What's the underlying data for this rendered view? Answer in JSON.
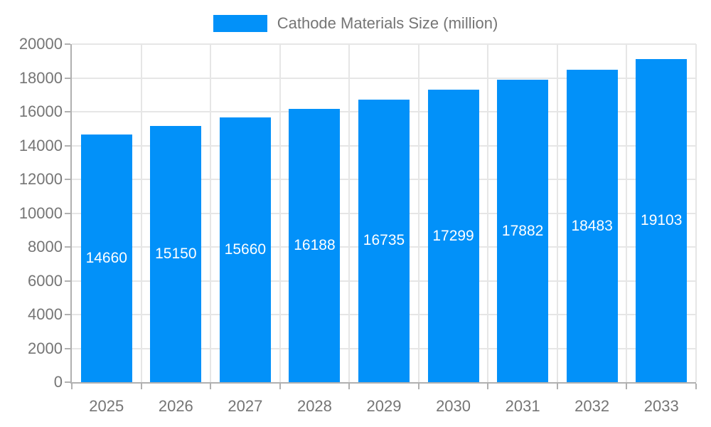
{
  "legend": {
    "label": "Cathode Materials Size (million)"
  },
  "chart_data": {
    "type": "bar",
    "title": "",
    "xlabel": "",
    "ylabel": "",
    "categories": [
      "2025",
      "2026",
      "2027",
      "2028",
      "2029",
      "2030",
      "2031",
      "2032",
      "2033"
    ],
    "values": [
      14660,
      15150,
      15660,
      16188,
      16735,
      17299,
      17882,
      18483,
      19103
    ],
    "series_name": "Cathode Materials Size (million)",
    "ylim": [
      0,
      20000
    ],
    "yticks": [
      0,
      2000,
      4000,
      6000,
      8000,
      10000,
      12000,
      14000,
      16000,
      18000,
      20000
    ],
    "grid": true,
    "legend_position": "top-center",
    "value_label_position": "inside-middle"
  },
  "colors": {
    "bar": "#0291f9",
    "grid": "#e6e6e6",
    "axis": "#b0b0b0",
    "label_text": "#757575",
    "value_label_text": "#ffffff",
    "background": "#ffffff"
  }
}
